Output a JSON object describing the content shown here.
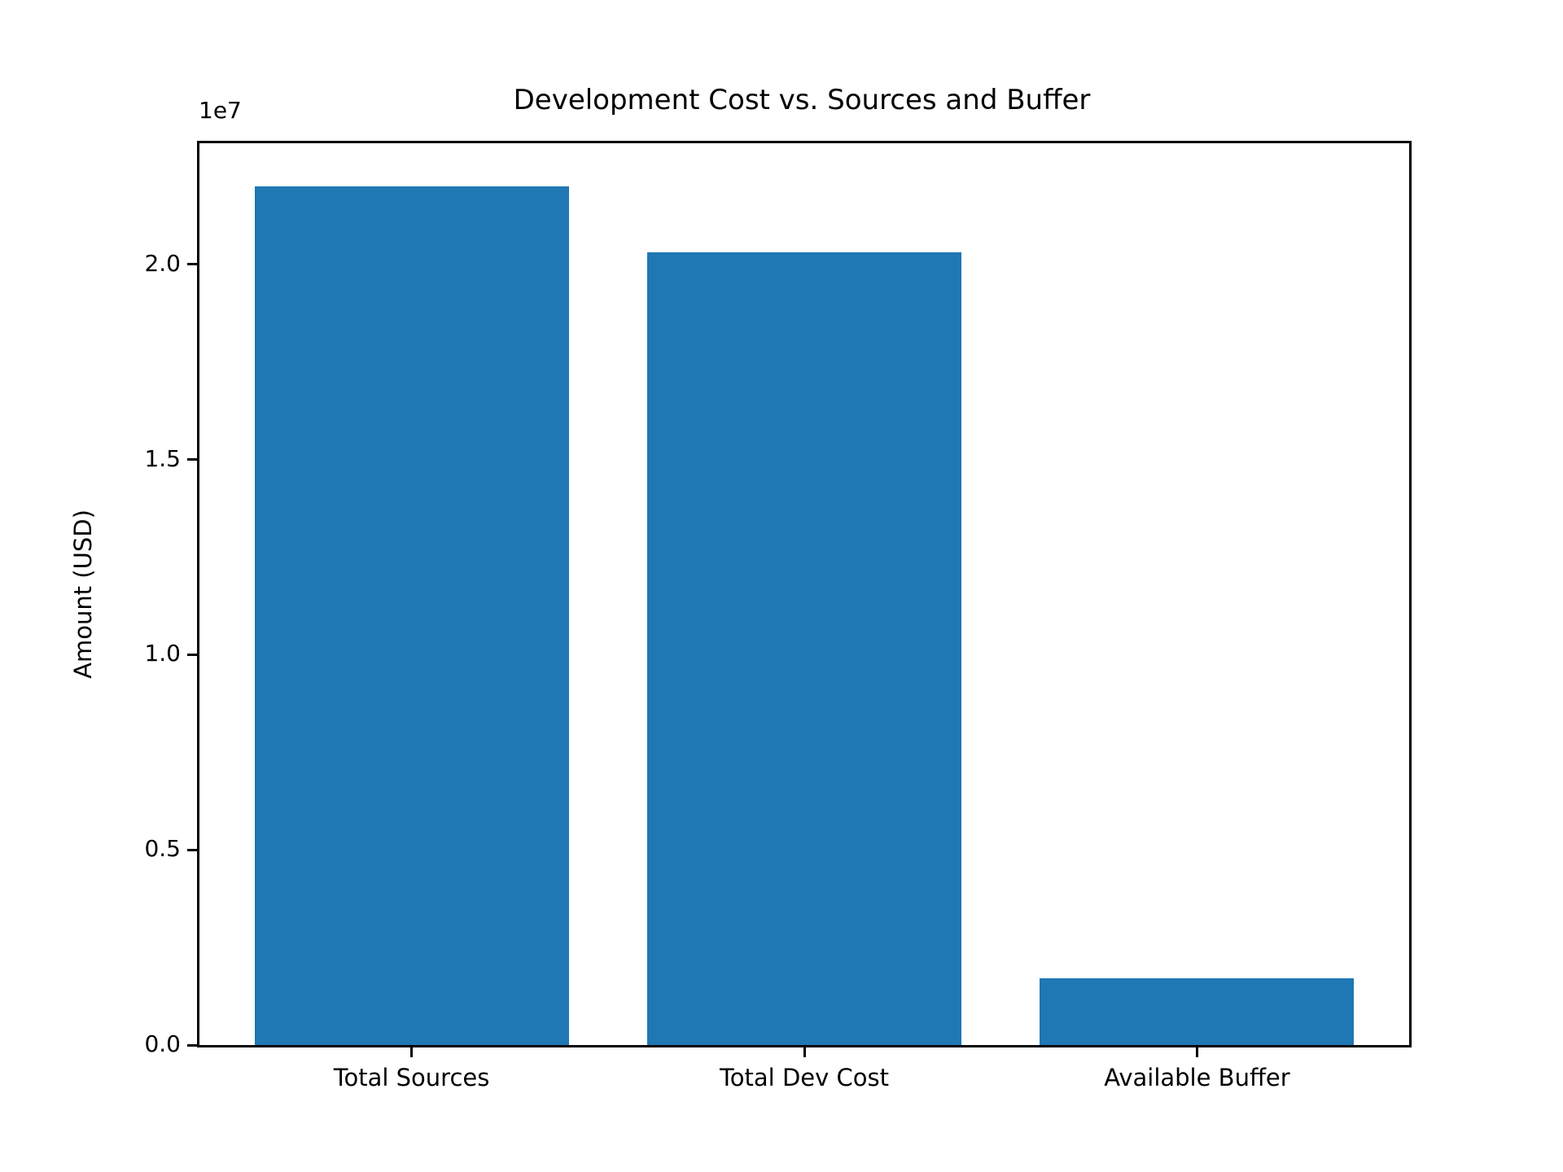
{
  "chart_data": {
    "type": "bar",
    "title": "Development Cost vs. Sources and Buffer",
    "xlabel": "",
    "ylabel": "Amount (USD)",
    "offset_label": "1e7",
    "categories": [
      "Total Sources",
      "Total Dev Cost",
      "Available Buffer"
    ],
    "values": [
      22000000,
      20300000,
      1700000
    ],
    "ylim": [
      0,
      23100000
    ],
    "yticks": [
      0,
      5000000,
      10000000,
      15000000,
      20000000
    ],
    "ytick_labels": [
      "0.0",
      "0.5",
      "1.0",
      "1.5",
      "2.0"
    ],
    "ytick_scale": 10000000,
    "xlim": [
      -0.54,
      2.54
    ],
    "bar_positions": [
      0,
      1,
      2
    ],
    "bar_width_frac": 0.8,
    "bar_color": "#1f77b4",
    "axis_color": "#000000",
    "background_color": "#ffffff",
    "grid": false,
    "legend": null
  }
}
